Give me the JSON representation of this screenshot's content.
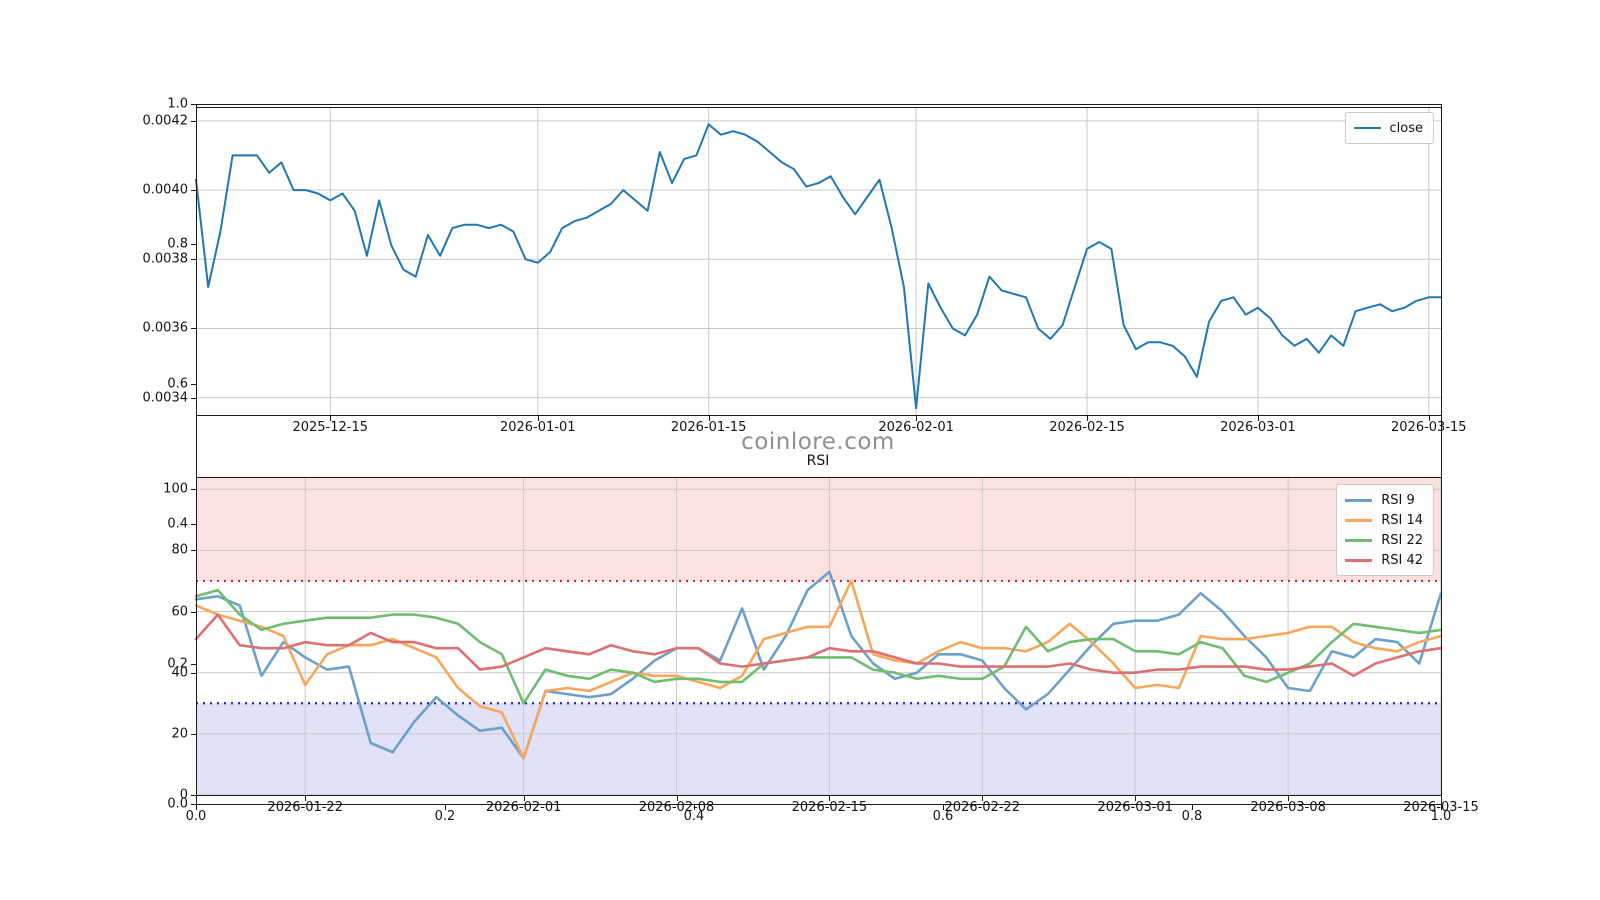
{
  "watermark": "coinlore.com",
  "rsi_title": "RSI",
  "colors": {
    "close_line": "#1f77b4",
    "rsi9_line": "#6ba0cd",
    "rsi14_line": "#f9a65c",
    "rsi22_line": "#6fbd6f",
    "rsi42_line": "#dd7070",
    "overbought_band": "#fce1e1",
    "oversold_band": "#e1e1f8",
    "overbought_dotted": "#d62740",
    "oversold_dotted": "#1821c9",
    "gridline": "#c9c9c9",
    "watermark_gray": "#8f8f8f"
  },
  "overlay_axis": {
    "x_tick_labels": [
      "0.0",
      "0.2",
      "0.4",
      "0.6",
      "0.8",
      "1.0"
    ],
    "y_tick_labels": [
      "0.0",
      "0.2",
      "0.4",
      "0.6",
      "0.8",
      "1.0"
    ]
  },
  "chart_data": [
    {
      "type": "line",
      "title": "",
      "x_start": "2025-12-04",
      "x_end": "2026-03-16",
      "x_freq": "daily",
      "grid": true,
      "legend_position": "upper right",
      "x_tick_labels": [
        "2025-12-15",
        "2026-01-01",
        "2026-01-15",
        "2026-02-01",
        "2026-02-15",
        "2026-03-01",
        "2026-03-15"
      ],
      "y_tick_labels": [
        "0.0042",
        "0.0040",
        "0.0038",
        "0.0036",
        "0.0034"
      ],
      "y_tick_values": [
        0.0042,
        0.004,
        0.0038,
        0.0036,
        0.0034
      ],
      "ylim": [
        0.00335,
        0.00424
      ],
      "series": [
        {
          "name": "close",
          "color": "#1f77b4",
          "values": [
            0.00403,
            0.00372,
            0.00388,
            0.0041,
            0.0041,
            0.0041,
            0.00405,
            0.00408,
            0.004,
            0.004,
            0.00399,
            0.00397,
            0.00399,
            0.00394,
            0.00381,
            0.00397,
            0.00384,
            0.00377,
            0.00375,
            0.00387,
            0.00381,
            0.00389,
            0.0039,
            0.0039,
            0.00389,
            0.0039,
            0.00388,
            0.0038,
            0.00379,
            0.00382,
            0.00389,
            0.00391,
            0.00392,
            0.00394,
            0.00396,
            0.004,
            0.00397,
            0.00394,
            0.00411,
            0.00402,
            0.00409,
            0.0041,
            0.00419,
            0.00416,
            0.00417,
            0.00416,
            0.00414,
            0.00411,
            0.00408,
            0.00406,
            0.00401,
            0.00402,
            0.00404,
            0.00398,
            0.00393,
            0.00398,
            0.00403,
            0.00389,
            0.00372,
            0.00337,
            0.00373,
            0.00366,
            0.0036,
            0.00358,
            0.00364,
            0.00375,
            0.00371,
            0.0037,
            0.00369,
            0.0036,
            0.00357,
            0.00361,
            0.00372,
            0.00383,
            0.00385,
            0.00383,
            0.00361,
            0.00354,
            0.00356,
            0.00356,
            0.00355,
            0.00352,
            0.00346,
            0.00362,
            0.00368,
            0.00369,
            0.00364,
            0.00366,
            0.00363,
            0.00358,
            0.00355,
            0.00357,
            0.00353,
            0.00358,
            0.00355,
            0.00365,
            0.00366,
            0.00367,
            0.00365,
            0.00366,
            0.00368,
            0.00369,
            0.00369
          ]
        }
      ]
    },
    {
      "type": "line",
      "title": "RSI",
      "x_start": "2026-01-17",
      "x_end": "2026-03-15",
      "x_freq": "daily",
      "grid": true,
      "legend_position": "upper right",
      "x_tick_labels": [
        "2026-01-22",
        "2026-02-01",
        "2026-02-08",
        "2026-02-15",
        "2026-02-22",
        "2026-03-01",
        "2026-03-08",
        "2026-03-15"
      ],
      "y_tick_labels": [
        "100",
        "80",
        "60",
        "40",
        "20",
        "0"
      ],
      "y_tick_values": [
        100,
        80,
        60,
        40,
        20,
        0
      ],
      "ylim": [
        0,
        104
      ],
      "overbought_level": 70,
      "oversold_level": 30,
      "bands": [
        {
          "from": 70,
          "to": 104,
          "color": "#fce1e1"
        },
        {
          "from": 0,
          "to": 30,
          "color": "#e1e1f8"
        }
      ],
      "series": [
        {
          "name": "RSI 9",
          "color": "#6ba0cd",
          "values": [
            64,
            65,
            62,
            39,
            50,
            45,
            41,
            42,
            17,
            14,
            24,
            32,
            26,
            21,
            22,
            12,
            34,
            33,
            32,
            33,
            38,
            44,
            48,
            48,
            44,
            61,
            41,
            52,
            67,
            73,
            52,
            43,
            38,
            40,
            46,
            46,
            44,
            35,
            28,
            33,
            41,
            49,
            56,
            57,
            57,
            59,
            66,
            60,
            52,
            45,
            35,
            34,
            47,
            45,
            51,
            50,
            43,
            66
          ]
        },
        {
          "name": "RSI 14",
          "color": "#f9a65c",
          "values": [
            62,
            59,
            57,
            55,
            52,
            36,
            46,
            49,
            49,
            51,
            48,
            45,
            35,
            29,
            27,
            12,
            34,
            35,
            34,
            37,
            40,
            39,
            39,
            37,
            35,
            39,
            51,
            53,
            55,
            55,
            70,
            46,
            44,
            43,
            47,
            50,
            48,
            48,
            47,
            50,
            56,
            50,
            43,
            35,
            36,
            35,
            52,
            51,
            51,
            52,
            53,
            55,
            55,
            50,
            48,
            47,
            50,
            52
          ]
        },
        {
          "name": "RSI 22",
          "color": "#6fbd6f",
          "values": [
            65,
            67,
            59,
            54,
            56,
            57,
            58,
            58,
            58,
            59,
            59,
            58,
            56,
            50,
            46,
            30,
            41,
            39,
            38,
            41,
            40,
            37,
            38,
            38,
            37,
            37,
            43,
            44,
            45,
            45,
            45,
            41,
            40,
            38,
            39,
            38,
            38,
            42,
            55,
            47,
            50,
            51,
            51,
            47,
            47,
            46,
            50,
            48,
            39,
            37,
            40,
            43,
            50,
            56,
            55,
            54,
            53,
            54
          ]
        },
        {
          "name": "RSI 42",
          "color": "#dd7070",
          "values": [
            51,
            59,
            49,
            48,
            48,
            50,
            49,
            49,
            53,
            50,
            50,
            48,
            48,
            41,
            42,
            45,
            48,
            47,
            46,
            49,
            47,
            46,
            48,
            48,
            43,
            42,
            43,
            44,
            45,
            48,
            47,
            47,
            45,
            43,
            43,
            42,
            42,
            42,
            42,
            42,
            43,
            41,
            40,
            40,
            41,
            41,
            42,
            42,
            42,
            41,
            41,
            42,
            43,
            39,
            43,
            45,
            47,
            48
          ]
        }
      ]
    }
  ]
}
